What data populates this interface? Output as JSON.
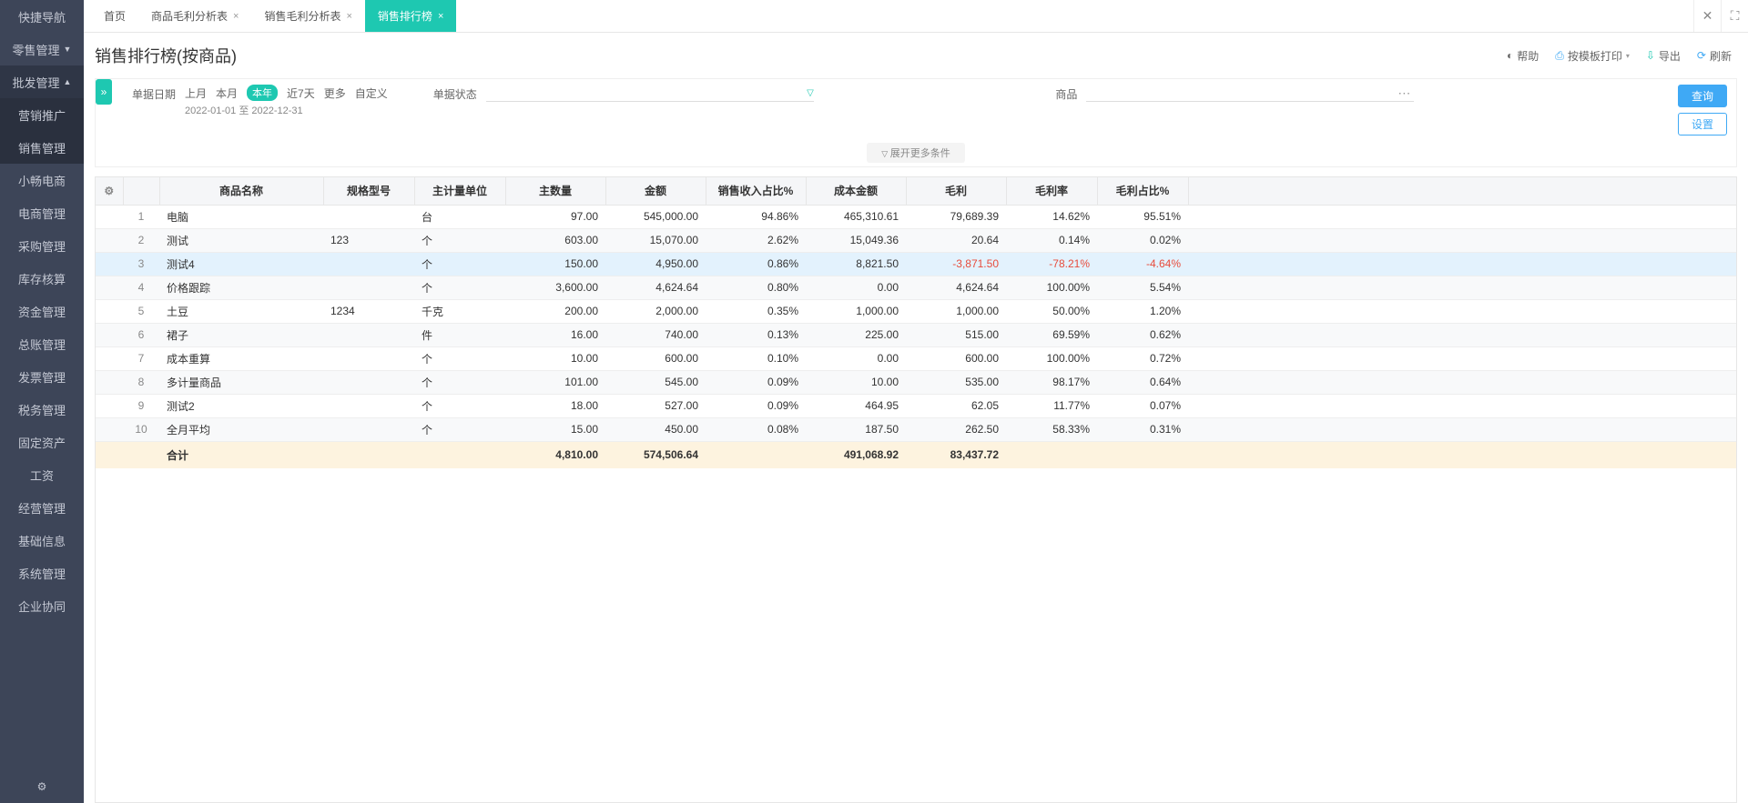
{
  "sidebar": {
    "items": [
      {
        "label": "快捷导航",
        "arrow": ""
      },
      {
        "label": "零售管理",
        "arrow": "▼"
      },
      {
        "label": "批发管理",
        "arrow": "▲",
        "expanded": true,
        "subs": [
          {
            "label": "营销推广"
          },
          {
            "label": "销售管理"
          }
        ]
      },
      {
        "label": "小畅电商",
        "arrow": ""
      },
      {
        "label": "电商管理",
        "arrow": ""
      },
      {
        "label": "采购管理",
        "arrow": ""
      },
      {
        "label": "库存核算",
        "arrow": ""
      },
      {
        "label": "资金管理",
        "arrow": ""
      },
      {
        "label": "总账管理",
        "arrow": ""
      },
      {
        "label": "发票管理",
        "arrow": ""
      },
      {
        "label": "税务管理",
        "arrow": ""
      },
      {
        "label": "固定资产",
        "arrow": ""
      },
      {
        "label": "工资",
        "arrow": ""
      },
      {
        "label": "经营管理",
        "arrow": ""
      },
      {
        "label": "基础信息",
        "arrow": ""
      },
      {
        "label": "系统管理",
        "arrow": ""
      },
      {
        "label": "企业协同",
        "arrow": ""
      }
    ]
  },
  "tabs": [
    {
      "label": "首页",
      "closable": false
    },
    {
      "label": "商品毛利分析表",
      "closable": true
    },
    {
      "label": "销售毛利分析表",
      "closable": true
    },
    {
      "label": "销售排行榜",
      "closable": true,
      "active": true
    }
  ],
  "pageTitle": "销售排行榜(按商品)",
  "headerActions": {
    "help": "帮助",
    "printTpl": "按模板打印",
    "export": "导出",
    "refresh": "刷新"
  },
  "filters": {
    "dateLabel": "单据日期",
    "dateOpts": [
      "上月",
      "本月",
      "本年",
      "近7天",
      "更多",
      "自定义"
    ],
    "dateActive": "本年",
    "dateRange": "2022-01-01 至 2022-12-31",
    "statusLabel": "单据状态",
    "productLabel": "商品",
    "expandMore": "展开更多条件",
    "queryBtn": "查询",
    "settingBtn": "设置"
  },
  "table": {
    "columns": [
      "",
      "",
      "商品名称",
      "规格型号",
      "主计量单位",
      "主数量",
      "金额",
      "销售收入占比%",
      "成本金额",
      "毛利",
      "毛利率",
      "毛利占比%",
      ""
    ],
    "rows": [
      {
        "idx": "1",
        "name": "电脑",
        "spec": "",
        "unit": "台",
        "qty": "97.00",
        "amount": "545,000.00",
        "revPct": "94.86%",
        "cost": "465,310.61",
        "profit": "79,689.39",
        "profitRate": "14.62%",
        "profitPct": "95.51%"
      },
      {
        "idx": "2",
        "name": "测试",
        "spec": "123",
        "unit": "个",
        "qty": "603.00",
        "amount": "15,070.00",
        "revPct": "2.62%",
        "cost": "15,049.36",
        "profit": "20.64",
        "profitRate": "0.14%",
        "profitPct": "0.02%"
      },
      {
        "idx": "3",
        "name": "测试4",
        "spec": "",
        "unit": "个",
        "qty": "150.00",
        "amount": "4,950.00",
        "revPct": "0.86%",
        "cost": "8,821.50",
        "profit": "-3,871.50",
        "profitRate": "-78.21%",
        "profitPct": "-4.64%",
        "hover": true
      },
      {
        "idx": "4",
        "name": "价格跟踪",
        "spec": "",
        "unit": "个",
        "qty": "3,600.00",
        "amount": "4,624.64",
        "revPct": "0.80%",
        "cost": "0.00",
        "profit": "4,624.64",
        "profitRate": "100.00%",
        "profitPct": "5.54%"
      },
      {
        "idx": "5",
        "name": "土豆",
        "spec": "1234",
        "unit": "千克",
        "qty": "200.00",
        "amount": "2,000.00",
        "revPct": "0.35%",
        "cost": "1,000.00",
        "profit": "1,000.00",
        "profitRate": "50.00%",
        "profitPct": "1.20%"
      },
      {
        "idx": "6",
        "name": "裙子",
        "spec": "",
        "unit": "件",
        "qty": "16.00",
        "amount": "740.00",
        "revPct": "0.13%",
        "cost": "225.00",
        "profit": "515.00",
        "profitRate": "69.59%",
        "profitPct": "0.62%"
      },
      {
        "idx": "7",
        "name": "成本重算",
        "spec": "",
        "unit": "个",
        "qty": "10.00",
        "amount": "600.00",
        "revPct": "0.10%",
        "cost": "0.00",
        "profit": "600.00",
        "profitRate": "100.00%",
        "profitPct": "0.72%"
      },
      {
        "idx": "8",
        "name": "多计量商品",
        "spec": "",
        "unit": "个",
        "qty": "101.00",
        "amount": "545.00",
        "revPct": "0.09%",
        "cost": "10.00",
        "profit": "535.00",
        "profitRate": "98.17%",
        "profitPct": "0.64%"
      },
      {
        "idx": "9",
        "name": "测试2",
        "spec": "",
        "unit": "个",
        "qty": "18.00",
        "amount": "527.00",
        "revPct": "0.09%",
        "cost": "464.95",
        "profit": "62.05",
        "profitRate": "11.77%",
        "profitPct": "0.07%"
      },
      {
        "idx": "10",
        "name": "全月平均",
        "spec": "",
        "unit": "个",
        "qty": "15.00",
        "amount": "450.00",
        "revPct": "0.08%",
        "cost": "187.50",
        "profit": "262.50",
        "profitRate": "58.33%",
        "profitPct": "0.31%"
      }
    ],
    "footer": {
      "label": "合计",
      "qty": "4,810.00",
      "amount": "574,506.64",
      "cost": "491,068.92",
      "profit": "83,437.72"
    }
  },
  "colors": {
    "accent": "#1ec8b1",
    "primaryBtn": "#3fa9f5",
    "sidebar": "#3d4558",
    "negative": "#e74c3c",
    "footerBg": "#fdf3df"
  }
}
